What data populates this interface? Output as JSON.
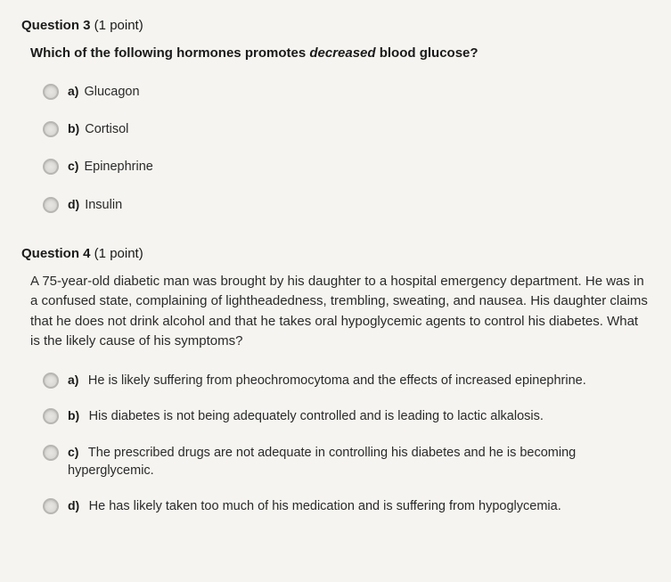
{
  "q3": {
    "header_bold": "Question 3",
    "header_rest": " (1 point)",
    "prompt_prefix": "Which of the following hormones promotes ",
    "prompt_em": "decreased",
    "prompt_suffix": " blood glucose?",
    "options": {
      "a": {
        "letter": "a)",
        "text": "Glucagon"
      },
      "b": {
        "letter": "b)",
        "text": "Cortisol"
      },
      "c": {
        "letter": "c)",
        "text": "Epinephrine"
      },
      "d": {
        "letter": "d)",
        "text": "Insulin"
      }
    }
  },
  "q4": {
    "header_bold": "Question 4",
    "header_rest": " (1 point)",
    "body": "A 75-year-old diabetic man was brought by his daughter to a hospital emergency department. He was in a confused state, complaining of lightheadedness, trembling, sweating, and nausea. His daughter claims that he does not drink alcohol and that he takes oral hypoglycemic agents to control his diabetes. What is the likely cause of his symptoms?",
    "options": {
      "a": {
        "letter": "a)",
        "text": "He is likely suffering from pheochromocytoma and the effects of increased epinephrine."
      },
      "b": {
        "letter": "b)",
        "text": "His diabetes is not being adequately controlled and is leading to lactic alkalosis."
      },
      "c": {
        "letter": "c)",
        "text": "The prescribed drugs are not adequate in controlling his diabetes and he is becoming hyperglycemic."
      },
      "d": {
        "letter": "d)",
        "text": "He has likely taken too much of his medication and is suffering from hypoglycemia."
      }
    }
  }
}
